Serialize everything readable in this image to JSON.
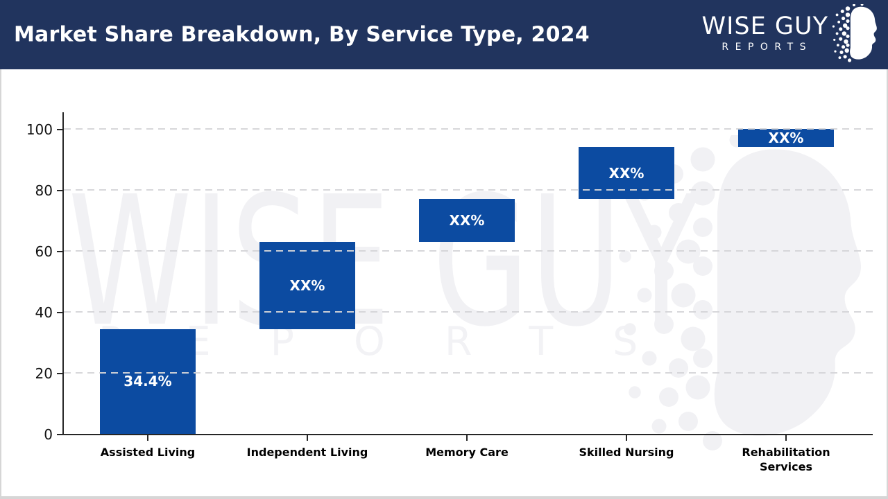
{
  "header": {
    "title": "Market Share Breakdown, By Service Type, 2024",
    "logo": {
      "line1": "WISE GUY",
      "line2": "REPORTS"
    }
  },
  "watermark": {
    "line1": "WISE GUY",
    "line2": "REPORTS"
  },
  "colors": {
    "header_background": "#21345e",
    "bar_blue": "#0c4ba1",
    "gridline": "#d5d5d8",
    "axis": "#262626",
    "watermark_gray": "#f1f1f4"
  },
  "chart_data": {
    "type": "bar",
    "subtype": "waterfall",
    "title": "Market Share Breakdown, By Service Type, 2024",
    "xlabel": "",
    "ylabel": "",
    "categories": [
      "Assisted Living",
      "Independent Living",
      "Memory Care",
      "Skilled Nursing",
      "Rehabilitation Services"
    ],
    "segments": [
      {
        "category": "Assisted Living",
        "start": 0,
        "end": 34.4,
        "label": "34.4%"
      },
      {
        "category": "Independent Living",
        "start": 34.4,
        "end": 63,
        "label": "XX%"
      },
      {
        "category": "Memory Care",
        "start": 63,
        "end": 77,
        "label": "XX%"
      },
      {
        "category": "Skilled Nursing",
        "start": 77,
        "end": 94,
        "label": "XX%"
      },
      {
        "category": "Rehabilitation Services",
        "start": 94,
        "end": 100,
        "label": "XX%"
      }
    ],
    "yticks": [
      "0",
      "20",
      "40",
      "60",
      "80",
      "100"
    ],
    "ytick_values": [
      0,
      20,
      40,
      60,
      80,
      100
    ],
    "ylim": [
      0,
      105
    ],
    "grid": true,
    "grid_style": "dashed",
    "legend": "none",
    "bar_color": "#0c4ba1",
    "bar_label_color": "#ffffff"
  }
}
